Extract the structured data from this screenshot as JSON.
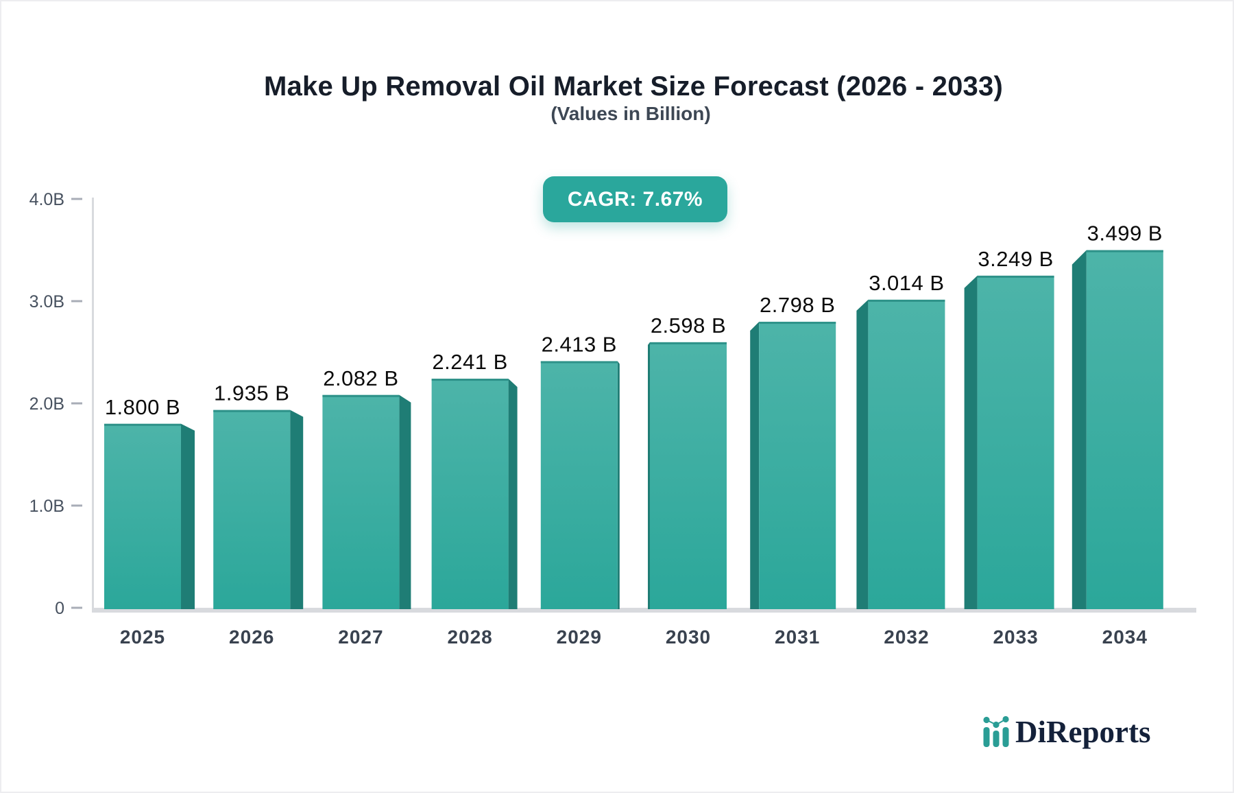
{
  "title": "Make Up Removal Oil Market Size Forecast (2026 - 2033)",
  "subtitle": "(Values in Billion)",
  "badge": {
    "label": "CAGR: 7.67%",
    "bg_color": "#2aa79c",
    "text_color": "#ffffff"
  },
  "logo": {
    "text": "DiReports",
    "icon": "mini-bar-line-chart-icon",
    "icon_color": "#2a9d95",
    "text_color": "#14213a"
  },
  "chart_data": {
    "type": "bar",
    "title": "Make Up Removal Oil Market Size Forecast (2026 - 2033)",
    "subtitle": "(Values in Billion)",
    "categories": [
      "2025",
      "2026",
      "2027",
      "2028",
      "2029",
      "2030",
      "2031",
      "2032",
      "2033",
      "2034"
    ],
    "values": [
      1.8,
      1.935,
      2.082,
      2.241,
      2.413,
      2.598,
      2.798,
      3.014,
      3.249,
      3.499
    ],
    "value_labels": [
      "1.800 B",
      "1.935 B",
      "2.082 B",
      "2.241 B",
      "2.413 B",
      "2.598 B",
      "2.798 B",
      "3.014 B",
      "3.249 B",
      "3.499 B"
    ],
    "xlabel": "",
    "ylabel": "",
    "ylim": [
      0,
      4
    ],
    "yticks": [
      {
        "value": 0,
        "label": "0"
      },
      {
        "value": 1,
        "label": "1.0B"
      },
      {
        "value": 2,
        "label": "2.0B"
      },
      {
        "value": 3,
        "label": "3.0B"
      },
      {
        "value": 4,
        "label": "4.0B"
      }
    ],
    "grid": false,
    "legend": "none",
    "style": "3d-perspective-bars",
    "colors": {
      "bar_face_top": "#4db4a9",
      "bar_face_bottom": "#2ba79a",
      "bar_top_edge": "#2e9289",
      "bar_side": "#1f7d75",
      "axis_line": "#d8dade",
      "tick_mark": "#a8adb7",
      "tick_label": "#47515f",
      "x_label": "#39424f",
      "value_label": "#0b0b0b"
    }
  }
}
